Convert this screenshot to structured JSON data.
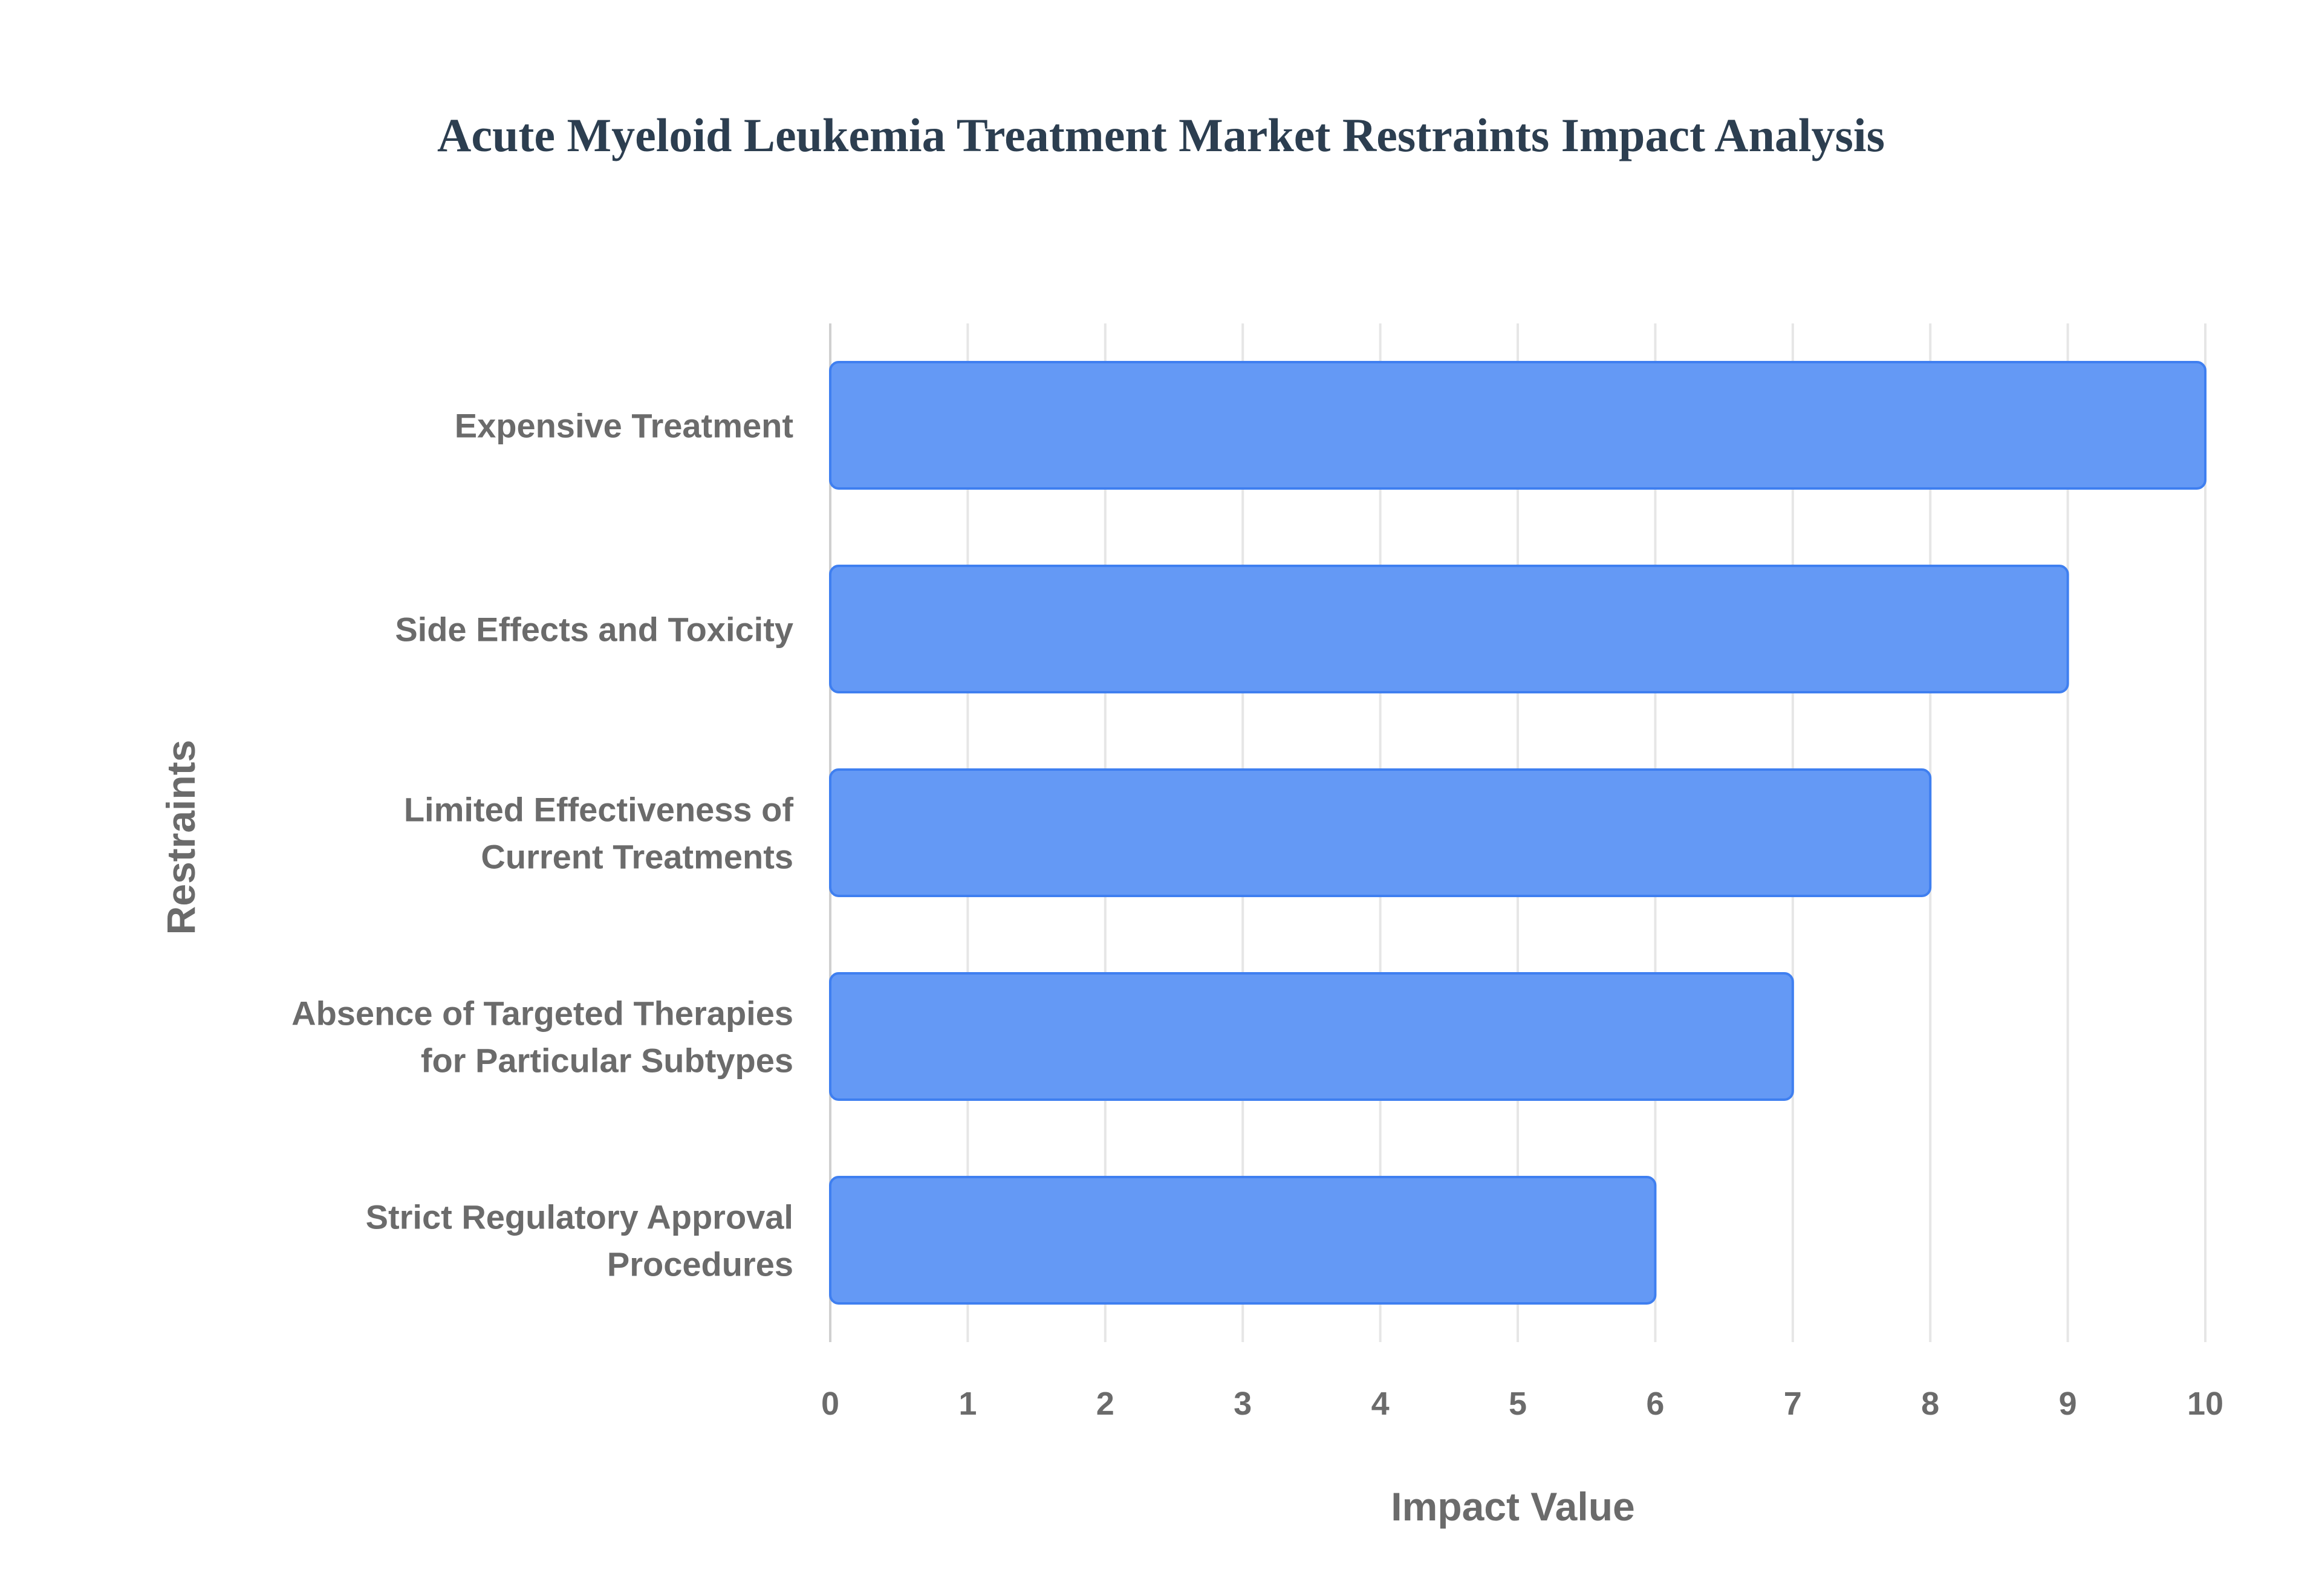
{
  "chart_data": {
    "type": "bar",
    "orientation": "horizontal",
    "title": "Acute Myeloid Leukemia Treatment Market Restraints Impact Analysis",
    "xlabel": "Impact Value",
    "ylabel": "Restraints",
    "categories": [
      "Expensive Treatment",
      "Side Effects and Toxicity",
      "Limited Effectiveness of Current Treatments",
      "Absence of Targeted Therapies for Particular Subtypes",
      "Strict Regulatory Approval Procedures"
    ],
    "category_lines": [
      [
        "Expensive Treatment"
      ],
      [
        "Side Effects and Toxicity"
      ],
      [
        "Limited Effectiveness of",
        "Current Treatments"
      ],
      [
        "Absence of Targeted Therapies",
        "for Particular Subtypes"
      ],
      [
        "Strict Regulatory Approval",
        "Procedures"
      ]
    ],
    "values": [
      10,
      9,
      8,
      7,
      6
    ],
    "xlim": [
      0,
      10
    ],
    "xticks": [
      "0",
      "1",
      "2",
      "3",
      "4",
      "5",
      "6",
      "7",
      "8",
      "9",
      "10"
    ],
    "grid": true,
    "legend": false,
    "colors": {
      "bar_fill": "#6499f5",
      "bar_stroke": "#3f7ff0",
      "title": "#2c3e50",
      "text": "#6b6b6b",
      "grid": "#e6e6e6"
    }
  }
}
